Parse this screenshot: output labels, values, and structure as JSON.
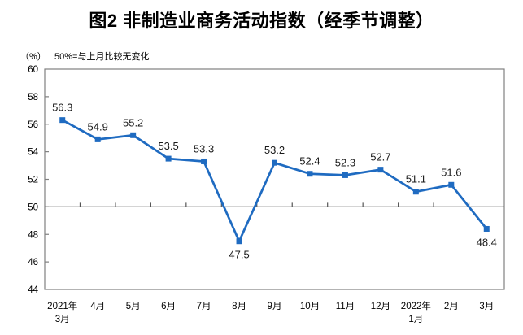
{
  "chart_data": {
    "type": "line",
    "title": "图2 非制造业商务活动指数（经季节调整）",
    "ylabel": "（%）",
    "baseline_note": "50%=与上月比较无变化",
    "categories": [
      "2021年\n3月",
      "4月",
      "5月",
      "6月",
      "7月",
      "8月",
      "9月",
      "10月",
      "11月",
      "12月",
      "2022年\n1月",
      "2月",
      "3月"
    ],
    "values": [
      56.3,
      54.9,
      55.2,
      53.5,
      53.3,
      47.5,
      53.2,
      52.4,
      52.3,
      52.7,
      51.1,
      51.6,
      48.4
    ],
    "data_labels": [
      "56.3",
      "54.9",
      "55.2",
      "53.5",
      "53.3",
      "47.5",
      "53.2",
      "52.4",
      "52.3",
      "52.7",
      "51.1",
      "51.6",
      "48.4"
    ],
    "ylim": [
      44,
      60
    ],
    "ytick_step": 2,
    "ytick_labels": [
      "60",
      "58",
      "56",
      "54",
      "52",
      "50",
      "48",
      "46",
      "44"
    ],
    "baseline": 50,
    "grid": false,
    "legend": "none",
    "line_color": "#1f6bc1",
    "marker": "square",
    "text_color": "#1a1a1a",
    "axis_color": "#808080",
    "baseline_color": "#555555"
  }
}
